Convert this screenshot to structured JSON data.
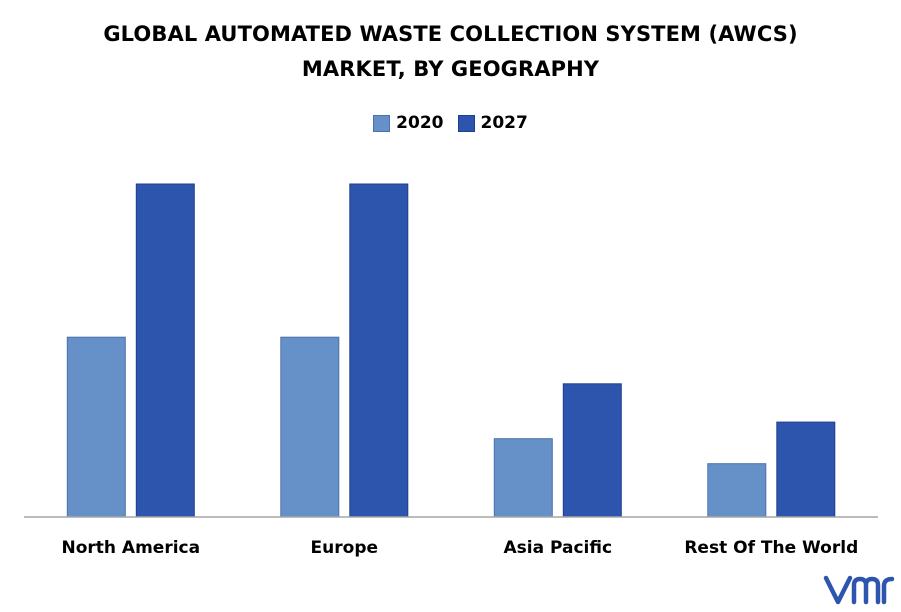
{
  "chart_data": {
    "type": "bar",
    "title": "GLOBAL AUTOMATED WASTE COLLECTION SYSTEM (AWCS) MARKET, BY GEOGRAPHY",
    "title_lines": [
      "GLOBAL AUTOMATED WASTE COLLECTION SYSTEM (AWCS)",
      "MARKET, BY GEOGRAPHY"
    ],
    "categories": [
      "North America",
      "Europe",
      "Asia Pacific",
      "Rest Of The World"
    ],
    "series": [
      {
        "name": "2020",
        "color": "#6690c8",
        "values": [
          54,
          54,
          23.5,
          16
        ]
      },
      {
        "name": "2027",
        "color": "#2e55ae",
        "values": [
          100,
          100,
          40,
          28.5
        ]
      }
    ],
    "ylim": [
      0,
      100
    ],
    "yaxis_visible": false,
    "grid": false,
    "legend_position": "top-center",
    "xlabel": "",
    "ylabel": ""
  },
  "logo": {
    "text": "vmr",
    "color": "#2e55ae"
  }
}
